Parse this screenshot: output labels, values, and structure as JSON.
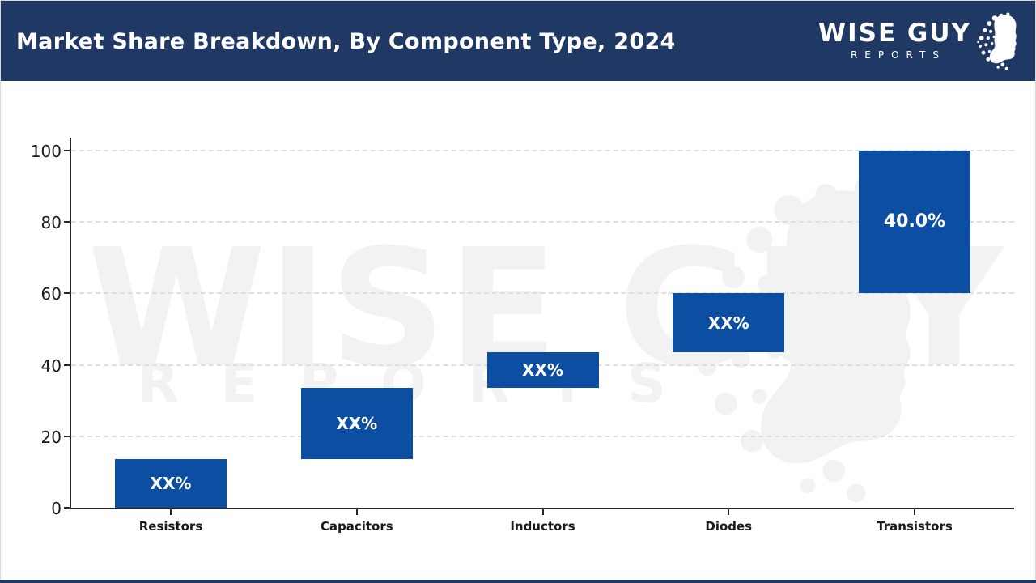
{
  "header": {
    "title": "Market Share Breakdown, By Component Type, 2024",
    "logo": {
      "line1": "WISE GUY",
      "line2": "REPORTS"
    }
  },
  "watermark": {
    "line1": "WISE GUY",
    "line2": "REPORTS"
  },
  "chart_data": {
    "type": "bar",
    "subtype": "waterfall",
    "title": "Market Share Breakdown, By Component Type, 2024",
    "categories": [
      "Resistors",
      "Capacitors",
      "Inductors",
      "Diodes",
      "Transistors"
    ],
    "series": [
      {
        "name": "Market share (%)",
        "segments": [
          {
            "category": "Resistors",
            "start": 0,
            "end": 13.5,
            "label": "XX%"
          },
          {
            "category": "Capacitors",
            "start": 13.5,
            "end": 33.5,
            "label": "XX%"
          },
          {
            "category": "Inductors",
            "start": 33.5,
            "end": 43.5,
            "label": "XX%"
          },
          {
            "category": "Diodes",
            "start": 43.5,
            "end": 60,
            "label": "XX%"
          },
          {
            "category": "Transistors",
            "start": 60,
            "end": 100,
            "label": "40.0%"
          }
        ]
      }
    ],
    "xlabel": "",
    "ylabel": "",
    "ylim": [
      0,
      100
    ],
    "yticks": [
      0,
      20,
      40,
      60,
      80,
      100
    ],
    "grid": "horizontal-dashed",
    "legend": "none",
    "bar_color": "#0b4ea2",
    "bar_label_color": "#ffffff"
  },
  "colors": {
    "header_bg": "#1f3864",
    "bar": "#0b4ea2",
    "watermark": "#f2f2f2",
    "axis": "#262626",
    "gridline": "#dfdfdf"
  }
}
